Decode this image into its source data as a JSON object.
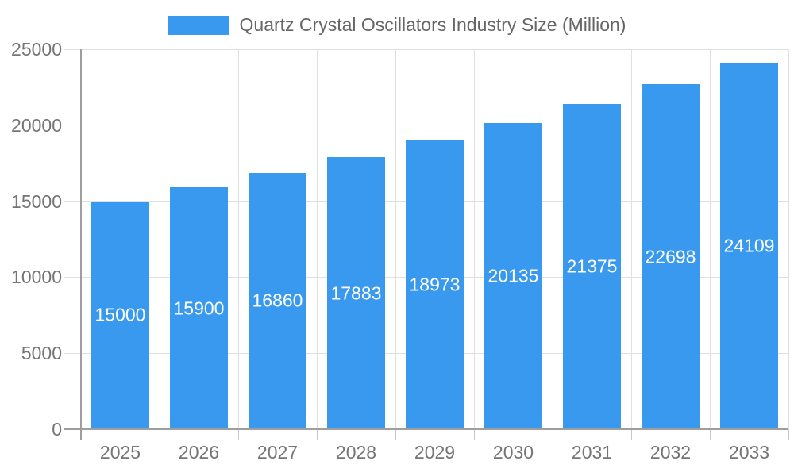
{
  "chart_data": {
    "type": "bar",
    "title": "Quartz Crystal Oscillators Industry Size (Million)",
    "categories": [
      "2025",
      "2026",
      "2027",
      "2028",
      "2029",
      "2030",
      "2031",
      "2032",
      "2033"
    ],
    "values": [
      15000,
      15900,
      16860,
      17883,
      18973,
      20135,
      21375,
      22698,
      24109
    ],
    "xlabel": "",
    "ylabel": "",
    "ylim": [
      0,
      25000
    ],
    "ytick_step": 5000,
    "yticks": [
      "0",
      "5000",
      "10000",
      "15000",
      "20000",
      "25000"
    ],
    "grid": true,
    "legend_position": "top",
    "value_labels_visible": true
  },
  "legend": {
    "label": "Quartz Crystal Oscillators Industry Size (Million)"
  },
  "colors": {
    "bar": "#3899ee",
    "grid": "#e0e0e0",
    "axis": "#9e9e9e",
    "tick_label": "#757575",
    "legend_text": "#666666",
    "value_label": "#ffffff",
    "background": "#ffffff"
  }
}
